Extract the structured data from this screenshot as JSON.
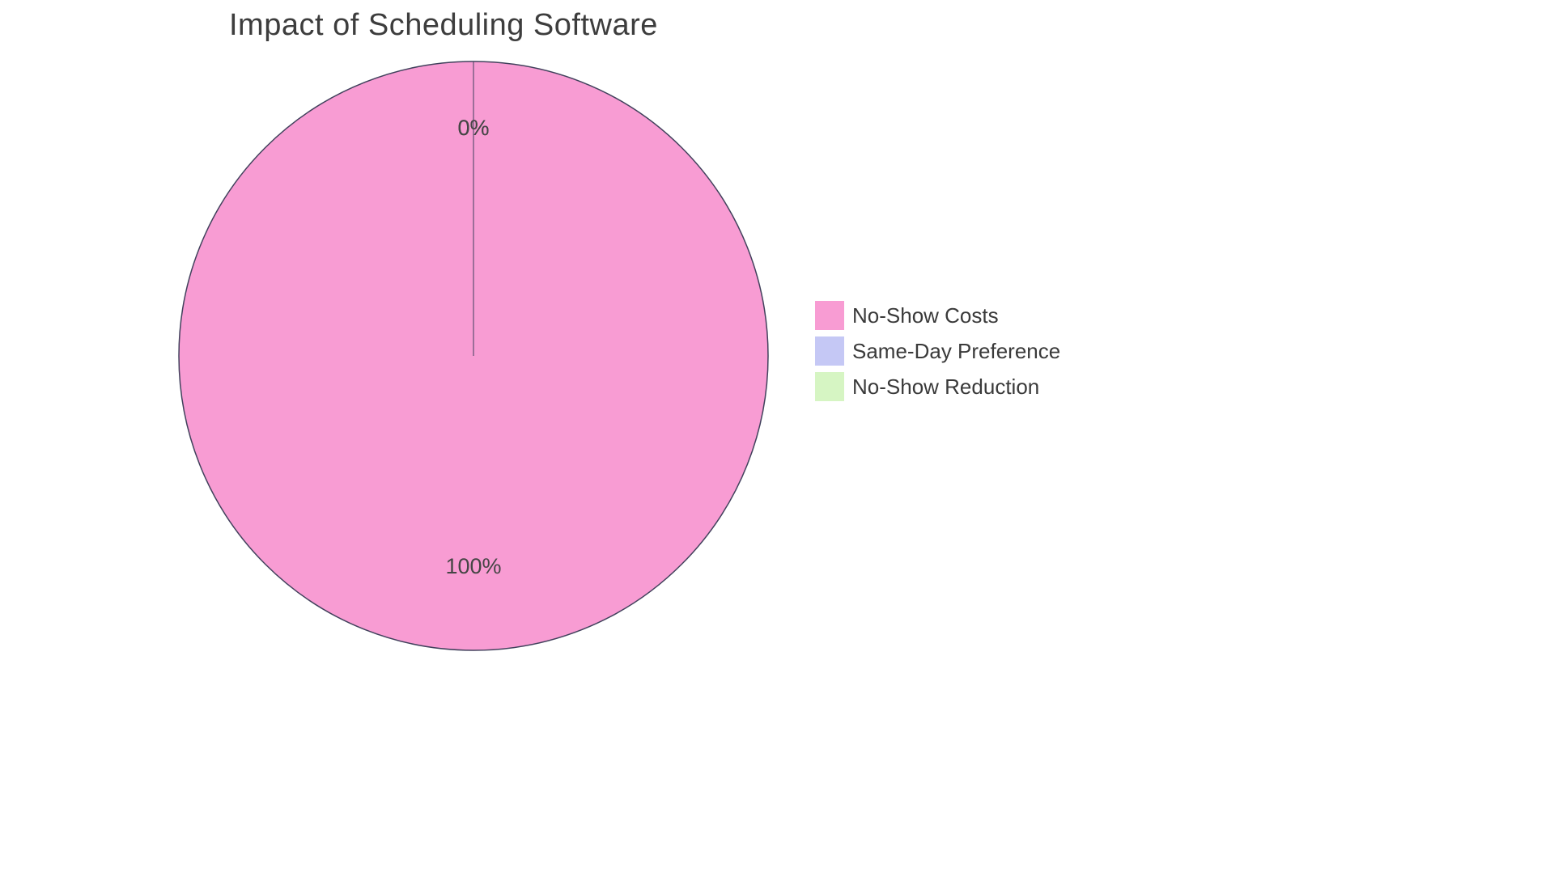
{
  "chart_data": {
    "type": "pie",
    "title": "Impact of Scheduling Software",
    "labels": [
      "No-Show Costs",
      "Same-Day Preference",
      "No-Show Reduction"
    ],
    "values": [
      100,
      0,
      0
    ],
    "slice_labels": [
      "100%",
      "0%",
      "0%"
    ],
    "colors": [
      "#f89cd3",
      "#c5c8f5",
      "#d6f5c3"
    ],
    "stroke_color": "#41415c",
    "title_color": "#3d3d3d",
    "label_color": "#454545",
    "legend_position": "right",
    "background": "#ffffff"
  }
}
